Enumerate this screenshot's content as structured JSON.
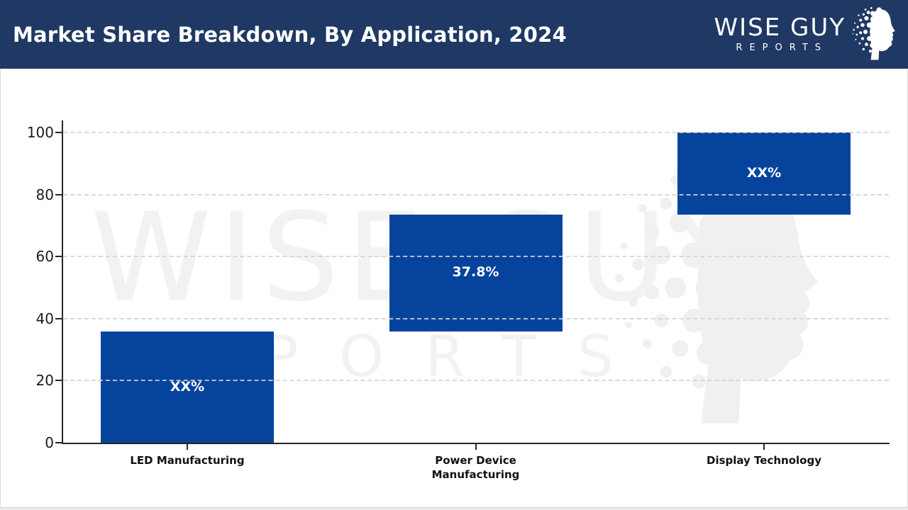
{
  "header": {
    "title": "Market Share Breakdown, By Application, 2024"
  },
  "logo": {
    "line1": "WISE GUY",
    "line2": "REPORTS"
  },
  "watermark": {
    "line1": "WISE GUY",
    "line2": "REPORTS"
  },
  "chart_data": {
    "type": "bar",
    "subtype": "floating-waterfall-segments",
    "title": "Market Share Breakdown, By Application, 2024",
    "categories": [
      "LED Manufacturing",
      "Power Device Manufacturing",
      "Display Technology"
    ],
    "segments": [
      {
        "category": "LED Manufacturing",
        "from": 0,
        "to": 35.8,
        "label": "XX%"
      },
      {
        "category": "Power Device Manufacturing",
        "from": 35.8,
        "to": 73.6,
        "label": "37.8%"
      },
      {
        "category": "Display Technology",
        "from": 73.6,
        "to": 100,
        "label": "XX%"
      }
    ],
    "xlabel": "",
    "ylabel": "",
    "ylim": [
      0,
      105
    ],
    "yticks": [
      0,
      20,
      40,
      60,
      80,
      100
    ],
    "grid": "horizontal-dashed",
    "legend": "none",
    "bar_color": "#06439d",
    "bar_label_color": "#ffffff"
  }
}
